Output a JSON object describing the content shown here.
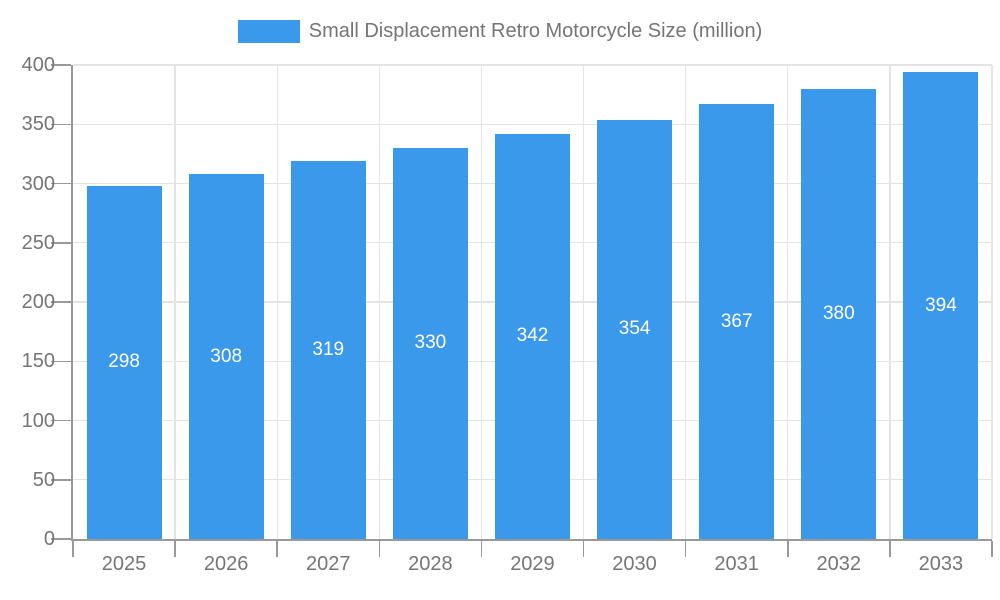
{
  "legend": {
    "label": "Small Displacement Retro Motorcycle Size (million)",
    "swatch_color": "#3B99EC"
  },
  "chart_data": {
    "type": "bar",
    "title": "Small Displacement Retro Motorcycle Size (million)",
    "categories": [
      "2025",
      "2026",
      "2027",
      "2028",
      "2029",
      "2030",
      "2031",
      "2032",
      "2033"
    ],
    "values": [
      298,
      308,
      319,
      330,
      342,
      354,
      367,
      380,
      394
    ],
    "xlabel": "",
    "ylabel": "",
    "ylim": [
      0,
      400
    ],
    "yticks": [
      0,
      50,
      100,
      150,
      200,
      250,
      300,
      350,
      400
    ],
    "grid": true,
    "legend_position": "top-center",
    "value_labels": "inside-middle"
  },
  "colors": {
    "bar": "#3B99EC",
    "grid_line": "#E4E4E4",
    "axis_line": "#999999",
    "tick_label": "#757575",
    "value_label": "#FFFFFF",
    "background": "#FFFFFF"
  }
}
